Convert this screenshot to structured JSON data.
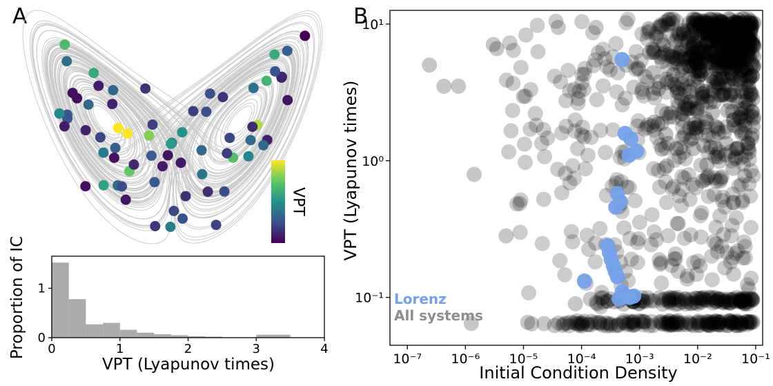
{
  "figure": {
    "panel_a_label": "A",
    "panel_b_label": "B"
  },
  "colormap_stops": [
    [
      0,
      "#440154"
    ],
    [
      0.25,
      "#3b528b"
    ],
    [
      0.5,
      "#21918c"
    ],
    [
      0.75,
      "#5ec962"
    ],
    [
      1,
      "#fde725"
    ]
  ],
  "chart_data": [
    {
      "type": "scatter",
      "colorbar_label": "VPT",
      "trajectory_color": "#cbcbcb",
      "color_range": {
        "vmin": 0,
        "vmax": 2.6
      },
      "dot_radius": 7.5,
      "lorenz": {
        "sigma": 10,
        "rho": 28,
        "beta": 2.6666667,
        "dt": 0.004,
        "steps": 26000,
        "skip": 600,
        "record_every": 2,
        "start": [
          1.0,
          1.0,
          20.0
        ]
      },
      "points": [
        [
          0.013,
          0.42
        ],
        [
          0.027,
          0.88
        ],
        [
          0.041,
          0.15
        ],
        [
          0.055,
          1.32
        ],
        [
          0.069,
          0.61
        ],
        [
          0.083,
          0.24
        ],
        [
          0.097,
          1.78
        ],
        [
          0.111,
          0.52
        ],
        [
          0.125,
          0.09
        ],
        [
          0.139,
          0.95
        ],
        [
          0.153,
          2.3
        ],
        [
          0.167,
          0.33
        ],
        [
          0.181,
          0.71
        ],
        [
          0.195,
          1.05
        ],
        [
          0.209,
          0.18
        ],
        [
          0.223,
          0.58
        ],
        [
          0.237,
          3.38
        ],
        [
          0.251,
          0.8
        ],
        [
          0.265,
          0.27
        ],
        [
          0.279,
          1.48
        ],
        [
          0.293,
          0.66
        ],
        [
          0.307,
          0.12
        ],
        [
          0.321,
          0.9
        ],
        [
          0.335,
          1.95
        ],
        [
          0.349,
          0.38
        ],
        [
          0.363,
          0.74
        ],
        [
          0.377,
          0.21
        ],
        [
          0.391,
          1.12
        ],
        [
          0.405,
          0.49
        ],
        [
          0.419,
          0.02
        ],
        [
          0.433,
          0.84
        ],
        [
          0.447,
          1.6
        ],
        [
          0.461,
          0.3
        ],
        [
          0.475,
          0.68
        ],
        [
          0.489,
          2.7
        ],
        [
          0.503,
          0.55
        ],
        [
          0.517,
          0.14
        ],
        [
          0.531,
          1.22
        ],
        [
          0.545,
          0.45
        ],
        [
          0.559,
          0.92
        ],
        [
          0.573,
          0.25
        ],
        [
          0.587,
          1.85
        ],
        [
          0.601,
          0.62
        ],
        [
          0.615,
          0.36
        ],
        [
          0.629,
          1.02
        ],
        [
          0.643,
          0.76
        ],
        [
          0.657,
          0.19
        ],
        [
          0.671,
          1.4
        ],
        [
          0.685,
          0.5
        ],
        [
          0.699,
          0.86
        ],
        [
          0.713,
          0.29
        ],
        [
          0.727,
          2.1
        ],
        [
          0.741,
          0.64
        ],
        [
          0.755,
          0.11
        ],
        [
          0.769,
          0.97
        ],
        [
          0.783,
          0.41
        ],
        [
          0.797,
          1.55
        ],
        [
          0.811,
          0.7
        ],
        [
          0.825,
          0.23
        ],
        [
          0.839,
          1.08
        ],
        [
          0.853,
          0.57
        ],
        [
          0.867,
          0.34
        ],
        [
          0.881,
          1.7
        ],
        [
          0.895,
          0.79
        ],
        [
          0.909,
          0.16
        ],
        [
          0.923,
          0.89
        ],
        [
          0.937,
          0.47
        ],
        [
          0.951,
          1.18
        ],
        [
          0.965,
          0.6
        ],
        [
          0.979,
          0.31
        ]
      ]
    },
    {
      "type": "bar",
      "xlabel": "VPT (Lyapunov times)",
      "ylabel": "Proportion of IC",
      "bar_color": "#ababab",
      "bin_start": 0,
      "bin_width": 0.25,
      "values": [
        1.52,
        0.78,
        0.27,
        0.3,
        0.16,
        0.1,
        0.07,
        0.05,
        0.03,
        0.02,
        0,
        0,
        0.06,
        0.06,
        0,
        0
      ],
      "xlim": [
        0,
        4
      ],
      "ylim": [
        0,
        1.65
      ],
      "xticks": [
        {
          "v": 0,
          "label": "0"
        },
        {
          "v": 1,
          "label": "1"
        },
        {
          "v": 2,
          "label": "2"
        },
        {
          "v": 3,
          "label": "3"
        },
        {
          "v": 4,
          "label": "4"
        }
      ],
      "yticks": [
        {
          "v": 0,
          "label": "0"
        },
        {
          "v": 1,
          "label": "1"
        }
      ]
    },
    {
      "type": "scatter",
      "xlabel": "Initial Condition Density",
      "ylabel": "VPT (Lyapunov times)",
      "x_scale": "log",
      "y_scale": "log",
      "xlim_log": [
        -7.3,
        -0.88
      ],
      "ylim_log": [
        -1.35,
        1.1
      ],
      "xticks": [
        {
          "v": -7,
          "label": "10⁻⁷"
        },
        {
          "v": -6,
          "label": "10⁻⁶"
        },
        {
          "v": -5,
          "label": "10⁻⁵"
        },
        {
          "v": -4,
          "label": "10⁻⁴"
        },
        {
          "v": -3,
          "label": "10⁻³"
        },
        {
          "v": -2,
          "label": "10⁻²"
        },
        {
          "v": -1,
          "label": "10⁻¹"
        }
      ],
      "yticks": [
        {
          "v": 1,
          "label": "10¹"
        },
        {
          "v": 0,
          "label": "10⁰"
        },
        {
          "v": -1,
          "label": "10⁻¹"
        }
      ],
      "dot_radius": 11,
      "seed": 1234,
      "legend": [
        {
          "label": "Lorenz",
          "color": "#74a1e8"
        },
        {
          "label": "All systems",
          "color": "#8e8e8e"
        }
      ],
      "series": [
        {
          "name": "All systems",
          "color": "#000000",
          "extra_alpha": 0.22,
          "components": [
            {
              "n": 380,
              "x": [
                -5.6,
                -1.03
              ],
              "xpow": 0.5,
              "y": [
                -1.08,
                1.04
              ],
              "ypow": 0.7,
              "alpha": 0.2
            },
            {
              "n": 300,
              "x": [
                -2.9,
                -1.03
              ],
              "xpow": 0.65,
              "y": [
                -0.2,
                1.04
              ],
              "ypow": 0.55,
              "alpha": 0.25
            },
            {
              "n": 150,
              "x": [
                -5.3,
                -1.04
              ],
              "xpow": 0.5,
              "y": [
                -1.21,
                -1.17
              ],
              "ypow": 1,
              "alpha": 0.22
            },
            {
              "n": 120,
              "x": [
                -4.6,
                -1.04
              ],
              "xpow": 0.5,
              "y": [
                -1.05,
                -1.0
              ],
              "ypow": 1,
              "alpha": 0.22
            },
            {
              "n": 160,
              "x": [
                -2.2,
                -1.03
              ],
              "xpow": 0.8,
              "y": [
                0.55,
                1.04
              ],
              "ypow": 0.6,
              "alpha": 0.3
            }
          ],
          "extra_points": [
            [
              -6.62,
              0.7
            ],
            [
              -6.37,
              0.545
            ],
            [
              -6.12,
              0.545
            ],
            [
              -5.52,
              0.85
            ],
            [
              -5.46,
              0.82
            ],
            [
              -5.0,
              0.47
            ],
            [
              -4.4,
              0.975
            ],
            [
              -3.75,
              0.975
            ],
            [
              -5.85,
              -0.1
            ],
            [
              -5.3,
              -0.55
            ],
            [
              -5.9,
              -1.19
            ]
          ]
        },
        {
          "name": "Lorenz",
          "color": "#74a1e8",
          "alpha": 0.95,
          "points": [
            [
              -3.3,
              0.74
            ],
            [
              -3.25,
              0.2
            ],
            [
              -3.15,
              0.16
            ],
            [
              -3.05,
              0.07
            ],
            [
              -3.18,
              0.04
            ],
            [
              -3.38,
              -0.24
            ],
            [
              -3.33,
              -0.3
            ],
            [
              -3.41,
              -0.34
            ],
            [
              -3.55,
              -0.62
            ],
            [
              -3.52,
              -0.67
            ],
            [
              -3.49,
              -0.72
            ],
            [
              -3.45,
              -0.77
            ],
            [
              -3.42,
              -0.81
            ],
            [
              -3.38,
              -0.85
            ],
            [
              -3.95,
              -0.88
            ],
            [
              -3.3,
              -0.96
            ],
            [
              -3.23,
              -0.99
            ],
            [
              -3.17,
              -1.0
            ],
            [
              -3.35,
              -1.01
            ],
            [
              -3.1,
              -0.99
            ]
          ]
        }
      ]
    }
  ]
}
